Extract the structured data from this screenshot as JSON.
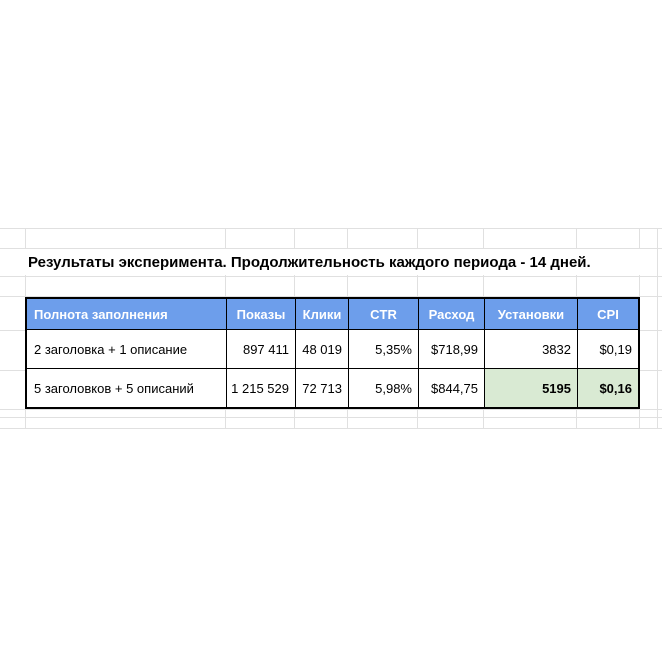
{
  "chart_data": {
    "type": "table",
    "title": "Результаты эксперимента. Продолжительность каждого периода - 14 дней.",
    "columns": [
      "Полнота заполнения",
      "Показы",
      "Клики",
      "CTR",
      "Расход",
      "Установки",
      "CPI"
    ],
    "rows": [
      [
        "2 заголовка + 1 описание",
        "897 411",
        "48 019",
        "5,35%",
        "$718,99",
        "3832",
        "$0,19"
      ],
      [
        "5 заголовков + 5 описаний",
        "1 215 529",
        "72 713",
        "5,98%",
        "$844,75",
        "5195",
        "$0,16"
      ]
    ],
    "highlighted_cells": [
      {
        "row_label": "5 заголовков + 5 описаний",
        "column": "Установки",
        "value": "5195"
      },
      {
        "row_label": "5 заголовков + 5 описаний",
        "column": "CPI",
        "value": "$0,16"
      }
    ],
    "layout_hints": {
      "header_style": "blue background, white bold text",
      "highlight_style": "light green background, bold text",
      "numeric_alignment": "right",
      "background": "spreadsheet with faint gridlines"
    }
  },
  "colors": {
    "header_bg": "#6d9eeb",
    "header_text": "#ffffff",
    "highlight_bg": "#d9ead3",
    "table_border": "#000000",
    "cell_text": "#000000",
    "gridline": "#e0e0e0",
    "page_bg": "#ffffff"
  }
}
